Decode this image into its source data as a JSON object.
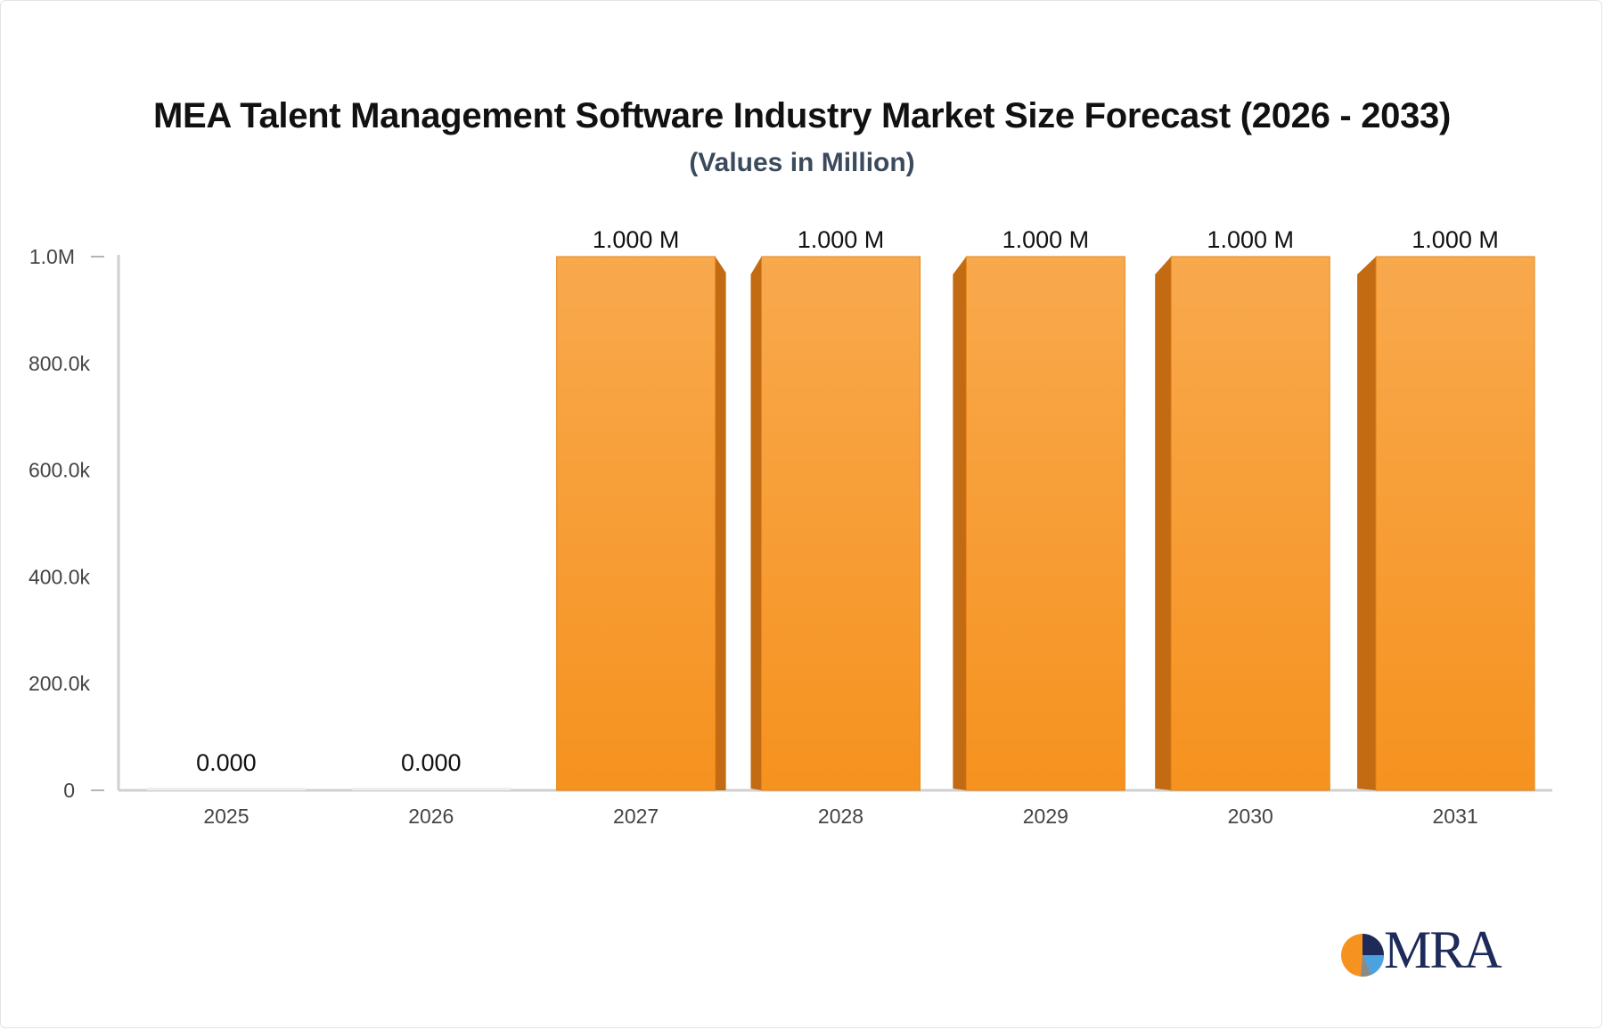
{
  "title": "MEA Talent Management Software Industry Market Size Forecast (2026 - 2033)",
  "subtitle": "(Values in Million)",
  "logo_text": "MRA",
  "colors": {
    "bar_front_top": "#f8a94d",
    "bar_front_bottom": "#f6921f",
    "bar_side": "#c26b12",
    "axis": "#d0d0d0",
    "tick_text": "#444444",
    "label_text": "#111111"
  },
  "chart_data": {
    "type": "bar",
    "categories": [
      "2025",
      "2026",
      "2027",
      "2028",
      "2029",
      "2030",
      "2031"
    ],
    "values": [
      0,
      0,
      1000000,
      1000000,
      1000000,
      1000000,
      1000000
    ],
    "data_labels": [
      "0.000",
      "0.000",
      "1.000 M",
      "1.000 M",
      "1.000 M",
      "1.000 M",
      "1.000 M"
    ],
    "ylim": [
      0,
      1000000
    ],
    "yticks": [
      0,
      200000,
      400000,
      600000,
      800000,
      1000000
    ],
    "ytick_labels": [
      "0",
      "200.0k",
      "400.0k",
      "600.0k",
      "800.0k",
      "1.0M"
    ],
    "xlabel": "",
    "ylabel": "",
    "grid": false,
    "legend": "none"
  }
}
